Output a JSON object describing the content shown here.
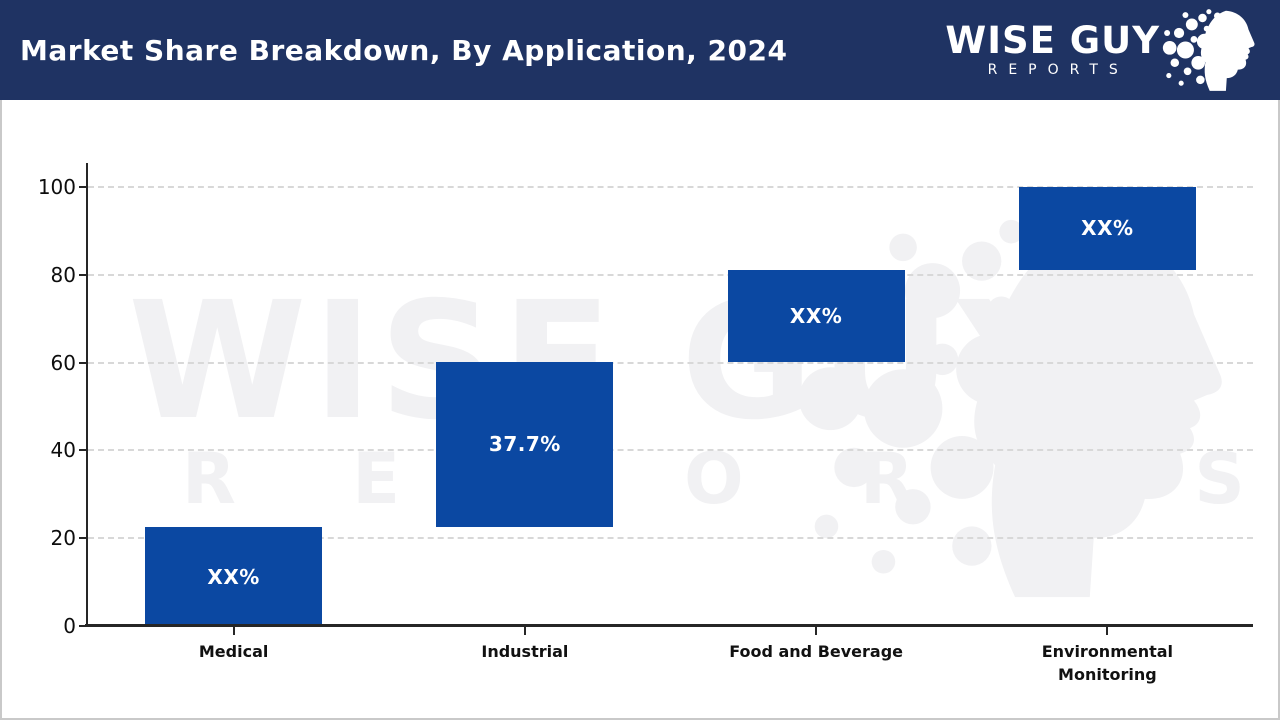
{
  "header": {
    "title": "Market Share Breakdown, By Application, 2024",
    "logo": {
      "line1": "WISE GUY",
      "line2": "REPORTS"
    }
  },
  "watermark": {
    "line1": "WISE GUY",
    "line2": "R E P O R T S"
  },
  "chart_data": {
    "type": "bar",
    "subtype": "floating-waterfall",
    "title": "Market Share Breakdown, By Application, 2024",
    "categories": [
      "Medical",
      "Industrial",
      "Food and Beverage",
      "Environmental Monitoring"
    ],
    "segments": [
      {
        "category": "Medical",
        "start": 0,
        "end": 22.5,
        "label": "XX%"
      },
      {
        "category": "Industrial",
        "start": 22.5,
        "end": 60.2,
        "label": "37.7%"
      },
      {
        "category": "Food and Beverage",
        "start": 60.2,
        "end": 81.2,
        "label": "XX%"
      },
      {
        "category": "Environmental Monitoring",
        "start": 81.2,
        "end": 100,
        "label": "XX%"
      }
    ],
    "xlabel": "",
    "ylabel": "",
    "ylim": [
      0,
      100
    ],
    "yticks": [
      0,
      20,
      40,
      60,
      80,
      100
    ],
    "grid": "horizontal-dashed",
    "legend": "none",
    "colors": {
      "bar": "#0b48a2",
      "bar_label": "#ffffff",
      "axis": "#262626",
      "grid": "#d8d8d8",
      "header_bg": "#1f3363",
      "watermark": "#f1f1f3"
    }
  }
}
